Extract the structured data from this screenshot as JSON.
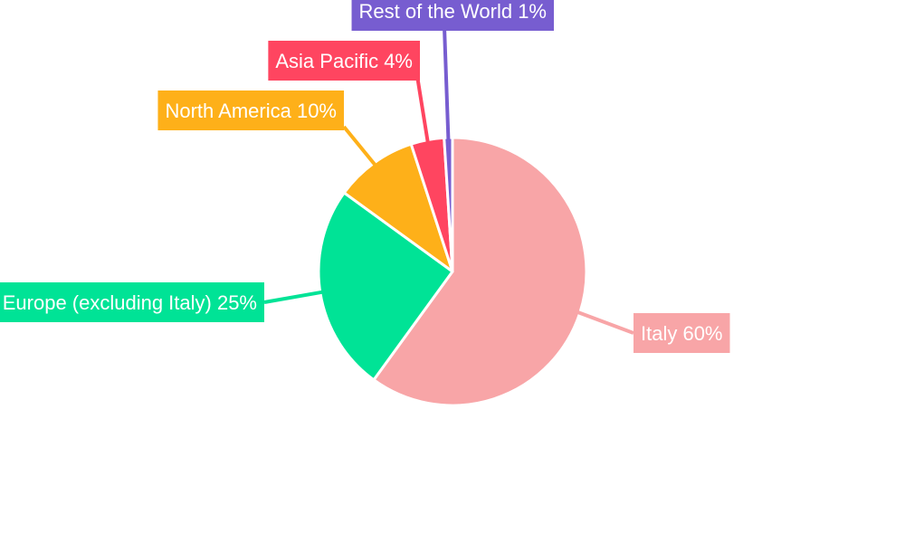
{
  "chart_data": {
    "type": "pie",
    "title": "",
    "start": "top-clockwise",
    "slices": [
      {
        "name": "Italy",
        "value": 60,
        "color": "#f8a5a7",
        "label": "Italy 60%"
      },
      {
        "name": "Europe (excluding Italy)",
        "value": 25,
        "color": "#00e396",
        "label": "Europe (excluding Italy) 25%"
      },
      {
        "name": "North America",
        "value": 10,
        "color": "#feb019",
        "label": "North America 10%"
      },
      {
        "name": "Asia Pacific",
        "value": 4,
        "color": "#ff4560",
        "label": "Asia Pacific 4%"
      },
      {
        "name": "Rest of the World",
        "value": 1,
        "color": "#775dd0",
        "label": "Rest of the World 1%"
      }
    ]
  }
}
